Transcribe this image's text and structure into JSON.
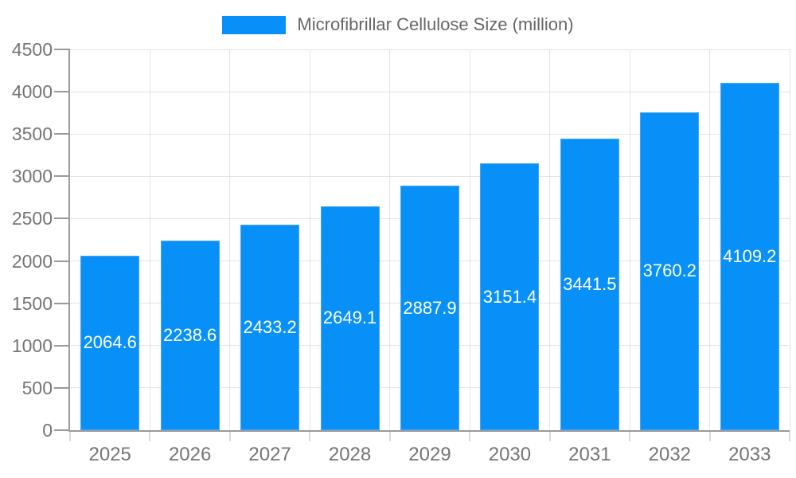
{
  "chart_data": {
    "type": "bar",
    "title": "Microfibrillar Cellulose Size (million)",
    "legend_position": "top",
    "categories": [
      "2025",
      "2026",
      "2027",
      "2028",
      "2029",
      "2030",
      "2031",
      "2032",
      "2033"
    ],
    "series": [
      {
        "name": "Microfibrillar Cellulose Size (million)",
        "values": [
          2064.6,
          2238.6,
          2433.2,
          2649.1,
          2887.9,
          3151.4,
          3441.5,
          3760.2,
          4109.2
        ]
      }
    ],
    "value_labels": [
      "2064.6",
      "2238.6",
      "2433.2",
      "2649.1",
      "2887.9",
      "3151.4",
      "3441.5",
      "3760.2",
      "4109.2"
    ],
    "xlabel": "",
    "ylabel": "",
    "ylim": [
      0,
      4500
    ],
    "ytick_step": 500,
    "ytick_labels": [
      "0",
      "500",
      "1000",
      "1500",
      "2000",
      "2500",
      "3000",
      "3500",
      "4000",
      "4500"
    ],
    "grid": true,
    "colors": {
      "bar": "#0890F9",
      "bar_edge": "#47A7F3",
      "bar_value_label": "#FFFFFF",
      "grid_line": "#E4E4E4",
      "axis_line": "#9A9A9A",
      "y_tick": "#999999",
      "x_tick": "#D9D9D9",
      "tick_label": "#757575",
      "legend_text": "#666666",
      "background": "#FFFFFF"
    }
  }
}
